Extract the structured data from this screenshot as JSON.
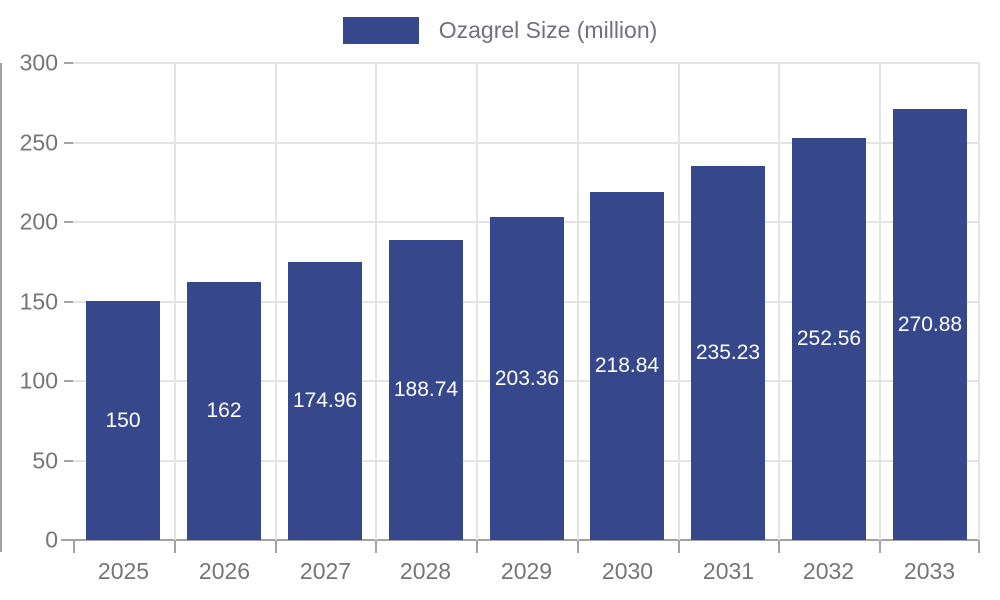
{
  "legend": {
    "label": "Ozagrel Size (million)"
  },
  "colors": {
    "bar": "#36478b",
    "legend_text": "#71717c",
    "axis_line": "#a3a3a3",
    "grid_line": "#e4e4e4",
    "tick_text": "#757575",
    "value_label": "#ffffff"
  },
  "chart_data": {
    "type": "bar",
    "title": "",
    "legend_entries": [
      "Ozagrel Size (million)"
    ],
    "legend_position": "top",
    "categories": [
      "2025",
      "2026",
      "2027",
      "2028",
      "2029",
      "2030",
      "2031",
      "2032",
      "2033"
    ],
    "values": [
      150,
      162,
      174.96,
      188.74,
      203.36,
      218.84,
      235.23,
      252.56,
      270.88
    ],
    "value_labels": [
      "150",
      "162",
      "174.96",
      "188.74",
      "203.36",
      "218.84",
      "235.23",
      "252.56",
      "270.88"
    ],
    "xlabel": "",
    "ylabel": "",
    "ylim": [
      0,
      300
    ],
    "yticks": [
      0,
      50,
      100,
      150,
      200,
      250,
      300
    ],
    "grid": true
  }
}
